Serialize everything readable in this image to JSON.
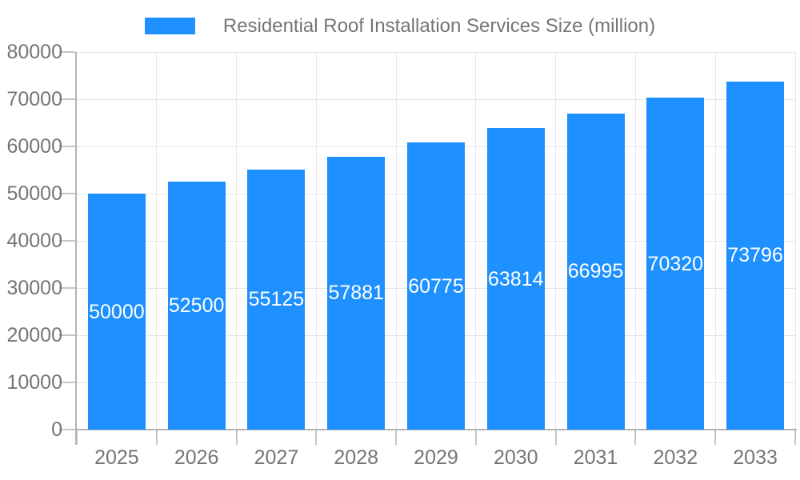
{
  "chart_data": {
    "type": "bar",
    "title": "Residential Roof Installation Services Size (million)",
    "categories": [
      "2025",
      "2026",
      "2027",
      "2028",
      "2029",
      "2030",
      "2031",
      "2032",
      "2033"
    ],
    "series": [
      {
        "name": "Residential Roof Installation Services Size (million)",
        "color": "#1E90FF",
        "values": [
          50000,
          52500,
          55125,
          57881,
          60775,
          63814,
          66995,
          70320,
          73796
        ]
      }
    ],
    "xlabel": "",
    "ylabel": "",
    "ylim": [
      0,
      80000
    ],
    "y_tick_step": 10000,
    "y_tick_labels": [
      "0",
      "10000",
      "20000",
      "30000",
      "40000",
      "50000",
      "60000",
      "70000",
      "80000"
    ],
    "grid": true,
    "legend_position": "top",
    "data_label_position": "inside-center",
    "colors": {
      "bar": "#1E90FF",
      "bar_label_text": "#FFFFFF",
      "axis_text": "#757575",
      "grid_line": "#E6E6E6",
      "axis_line": "#B3B3B3",
      "tick_mark": "#C6C6C6",
      "background": "#FFFFFF"
    }
  }
}
